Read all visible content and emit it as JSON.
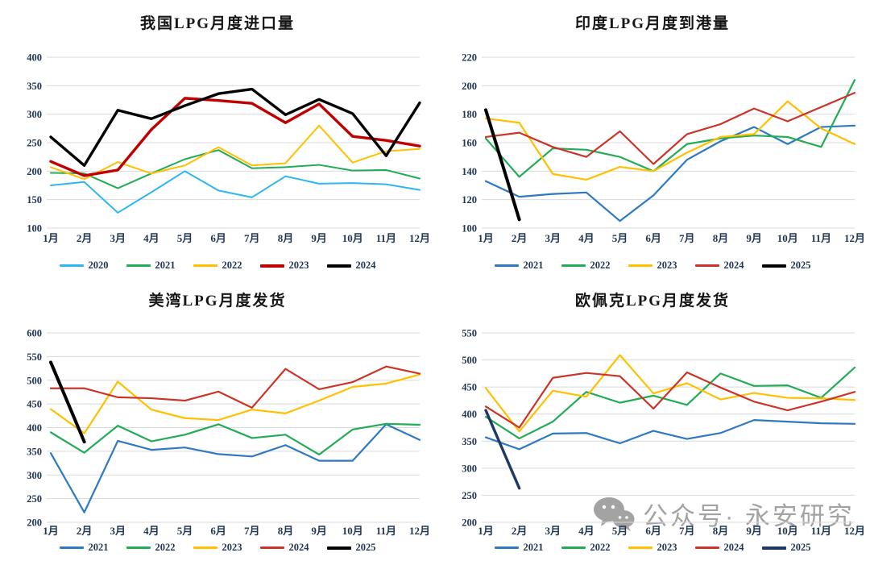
{
  "watermark": {
    "text": "公众号· 永安研究",
    "icon": "wechat-icon",
    "color": "#a3a3a3"
  },
  "chart_data": [
    {
      "type": "line",
      "title": "我国LPG月度进口量",
      "months": [
        "1月",
        "2月",
        "3月",
        "4月",
        "5月",
        "6月",
        "7月",
        "8月",
        "9月",
        "10月",
        "11月",
        "12月"
      ],
      "ylim": [
        100,
        400
      ],
      "ystep": 50,
      "grid": true,
      "legend_position": "bottom",
      "series": [
        {
          "name": "2020",
          "color": "#2cb7f0",
          "width": 2,
          "values": [
            175,
            181,
            127,
            163,
            200,
            166,
            154,
            191,
            178,
            179,
            177,
            167
          ]
        },
        {
          "name": "2021",
          "color": "#22ac55",
          "width": 2,
          "values": [
            197,
            196,
            170,
            196,
            221,
            237,
            205,
            207,
            211,
            201,
            202,
            187
          ]
        },
        {
          "name": "2022",
          "color": "#ffc000",
          "width": 2,
          "values": [
            207,
            186,
            216,
            196,
            210,
            242,
            210,
            214,
            280,
            215,
            235,
            239
          ]
        },
        {
          "name": "2023",
          "color": "#c00000",
          "width": 3.4,
          "values": [
            217,
            192,
            202,
            273,
            328,
            324,
            319,
            285,
            318,
            261,
            254,
            244
          ]
        },
        {
          "name": "2024",
          "color": "#000000",
          "width": 3.4,
          "values": [
            260,
            210,
            307,
            292,
            315,
            336,
            344,
            299,
            326,
            301,
            227,
            320
          ]
        }
      ]
    },
    {
      "type": "line",
      "title": "印度LPG月度到港量",
      "months": [
        "1月",
        "2月",
        "3月",
        "4月",
        "5月",
        "6月",
        "7月",
        "8月",
        "9月",
        "10月",
        "11月",
        "12月"
      ],
      "ylim": [
        100,
        220
      ],
      "ystep": 20,
      "grid": true,
      "legend_position": "bottom",
      "series": [
        {
          "name": "2021",
          "color": "#2e79c2",
          "width": 2.2,
          "values": [
            133,
            122,
            124,
            125,
            105,
            123,
            148,
            161,
            171,
            159,
            171,
            172
          ]
        },
        {
          "name": "2022",
          "color": "#22ac55",
          "width": 2.2,
          "values": [
            163,
            136,
            156,
            155,
            150,
            140,
            159,
            163,
            165,
            164,
            157,
            204
          ]
        },
        {
          "name": "2023",
          "color": "#ffc000",
          "width": 2.2,
          "values": [
            177,
            174,
            138,
            134,
            143,
            140,
            153,
            164,
            166,
            189,
            170,
            159
          ]
        },
        {
          "name": "2024",
          "color": "#cc3428",
          "width": 2.2,
          "values": [
            164,
            167,
            157,
            150,
            168,
            145,
            166,
            173,
            184,
            175,
            185,
            195
          ]
        },
        {
          "name": "2025",
          "color": "#000000",
          "width": 4,
          "values": [
            183,
            106
          ]
        }
      ]
    },
    {
      "type": "line",
      "title": "美湾LPG月度发货",
      "months": [
        "1月",
        "2月",
        "3月",
        "4月",
        "5月",
        "6月",
        "7月",
        "8月",
        "9月",
        "10月",
        "11月",
        "12月"
      ],
      "ylim": [
        200,
        600
      ],
      "ystep": 50,
      "grid": true,
      "legend_position": "bottom",
      "series": [
        {
          "name": "2021",
          "color": "#2e79c2",
          "width": 2.2,
          "values": [
            346,
            221,
            372,
            353,
            358,
            344,
            339,
            363,
            330,
            330,
            407,
            374
          ]
        },
        {
          "name": "2022",
          "color": "#22ac55",
          "width": 2.2,
          "values": [
            390,
            347,
            404,
            371,
            385,
            407,
            378,
            385,
            343,
            396,
            408,
            406
          ]
        },
        {
          "name": "2023",
          "color": "#ffc000",
          "width": 2.2,
          "values": [
            439,
            388,
            497,
            438,
            420,
            416,
            438,
            430,
            457,
            486,
            493,
            512
          ]
        },
        {
          "name": "2024",
          "color": "#cc3428",
          "width": 2.2,
          "values": [
            483,
            483,
            464,
            462,
            457,
            476,
            442,
            524,
            481,
            496,
            529,
            514
          ]
        },
        {
          "name": "2025",
          "color": "#000000",
          "width": 4,
          "values": [
            538,
            370
          ]
        }
      ]
    },
    {
      "type": "line",
      "title": "欧佩克LPG月度发货",
      "months": [
        "1月",
        "2月",
        "3月",
        "4月",
        "5月",
        "6月",
        "7月",
        "8月",
        "9月",
        "10月",
        "11月",
        "12月"
      ],
      "ylim": [
        200,
        550
      ],
      "ystep": 50,
      "grid": true,
      "legend_position": "bottom",
      "series": [
        {
          "name": "2021",
          "color": "#2e79c2",
          "width": 2.2,
          "values": [
            357,
            335,
            364,
            365,
            346,
            369,
            354,
            365,
            389,
            386,
            383,
            382
          ]
        },
        {
          "name": "2022",
          "color": "#22ac55",
          "width": 2.2,
          "values": [
            395,
            355,
            386,
            441,
            421,
            434,
            417,
            475,
            452,
            453,
            430,
            486
          ]
        },
        {
          "name": "2023",
          "color": "#ffc000",
          "width": 2.2,
          "values": [
            448,
            368,
            443,
            432,
            509,
            438,
            457,
            427,
            439,
            430,
            429,
            426
          ]
        },
        {
          "name": "2024",
          "color": "#cc3428",
          "width": 2.2,
          "values": [
            414,
            375,
            467,
            476,
            470,
            410,
            477,
            449,
            423,
            407,
            423,
            441
          ]
        },
        {
          "name": "2025",
          "color": "#1f3864",
          "width": 3.4,
          "values": [
            407,
            263
          ]
        }
      ]
    }
  ]
}
